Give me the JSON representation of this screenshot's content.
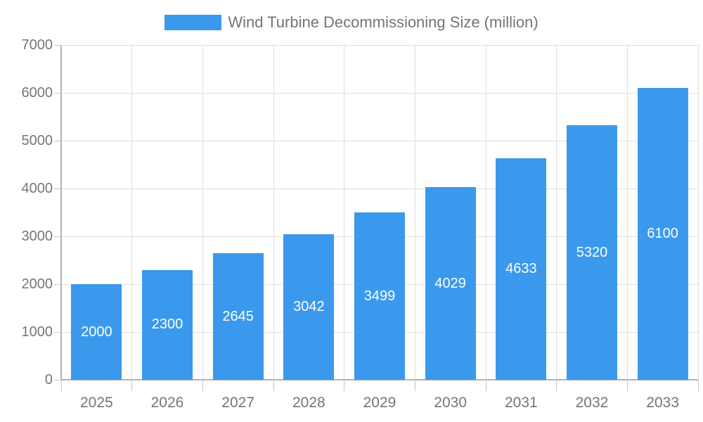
{
  "chart_data": {
    "type": "bar",
    "title": "Wind Turbine Decommissioning Size (million)",
    "legend": {
      "position": "top",
      "label": "Wind Turbine Decommissioning Size (million)"
    },
    "categories": [
      "2025",
      "2026",
      "2027",
      "2028",
      "2029",
      "2030",
      "2031",
      "2032",
      "2033"
    ],
    "values": [
      2000,
      2300,
      2645,
      3042,
      3499,
      4029,
      4633,
      5320,
      6100
    ],
    "xlabel": "",
    "ylabel": "",
    "ylim": [
      0,
      7000
    ],
    "yticks": [
      0,
      1000,
      2000,
      3000,
      4000,
      5000,
      6000,
      7000
    ],
    "grid": true,
    "colors": {
      "bar": "#3a99ec",
      "bar_label": "#ffffff",
      "grid_line": "#e0e0e0",
      "axis_line": "#b3b3b3",
      "tick_mark": "#c6c6c6",
      "text": "#757575"
    }
  }
}
